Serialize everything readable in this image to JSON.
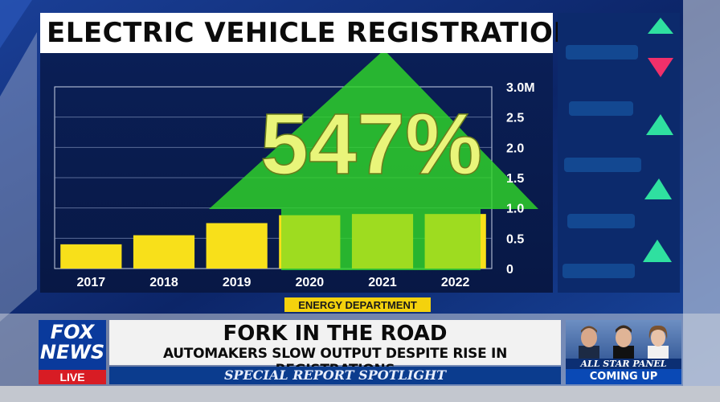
{
  "broadcast": {
    "title": "ELECTRIC VEHICLE REGISTRATIONS",
    "source": "ENERGY DEPARTMENT",
    "headline": "FORK IN THE ROAD",
    "subheadline": "AUTOMAKERS SLOW OUTPUT DESPITE RISE IN REGISTRATIONS",
    "segment": "SPECIAL REPORT SPOTLIGHT",
    "logo": {
      "line1": "FOX",
      "line2": "NEWS",
      "live": "LIVE"
    },
    "panel": {
      "line1": "ALL STAR PANEL",
      "line2": "COMING UP"
    },
    "colors": {
      "bar": "#f8e01a",
      "arrow": "#2fd72a",
      "percent": "#e9f57a",
      "navy": "#0a1a4a",
      "source_bar": "#f4d20d"
    }
  },
  "chart_data": {
    "type": "bar",
    "title": "ELECTRIC VEHICLE REGISTRATIONS",
    "categories": [
      "2017",
      "2018",
      "2019",
      "2020",
      "2021",
      "2022"
    ],
    "values": [
      0.4,
      0.55,
      0.75,
      0.88,
      0.9,
      0.9
    ],
    "ylim": [
      0,
      3.0
    ],
    "yticks": [
      "0",
      "0.5",
      "1.0",
      "1.5",
      "2.0",
      "2.5",
      "3.0M"
    ],
    "ytick_values": [
      0,
      0.5,
      1.0,
      1.5,
      2.0,
      2.5,
      3.0
    ],
    "grid": true,
    "annotation": "547%",
    "source": "ENERGY DEPARTMENT"
  }
}
